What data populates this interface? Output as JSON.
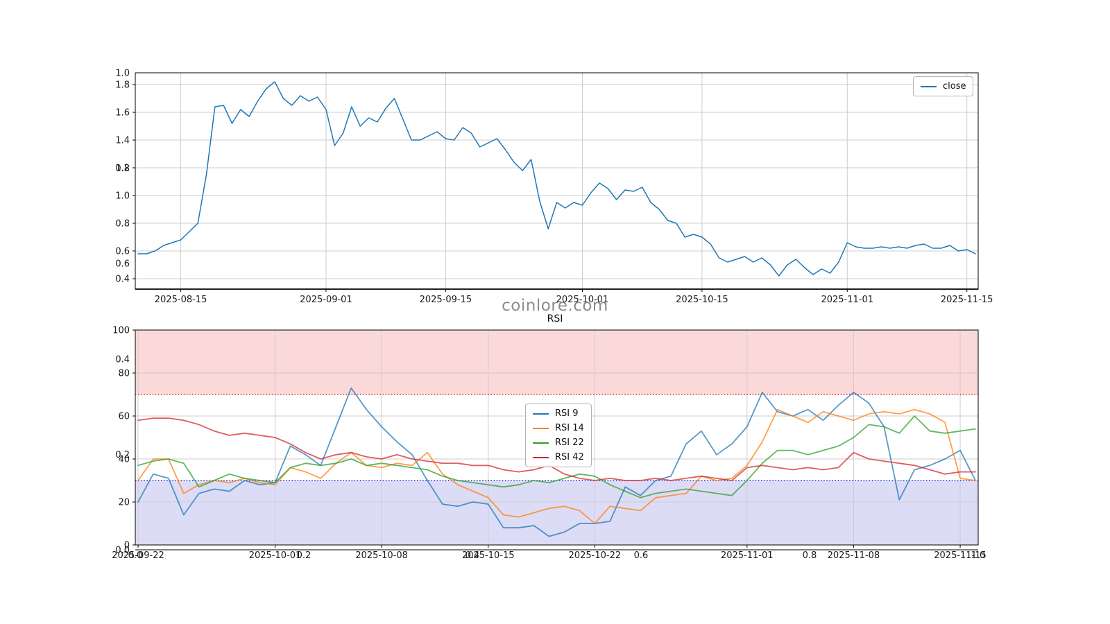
{
  "watermark": "coinlore.com",
  "colors": {
    "close_line": "#1f77b4",
    "rsi9_line": "#1f77b4",
    "rsi14_line": "#ff7f0e",
    "rsi22_line": "#2ca02c",
    "rsi42_line": "#d62728",
    "grid": "#cccccc",
    "overbought_band": "#fbd9d9",
    "oversold_band": "#dddcf6",
    "overbought_line": "#cc0000",
    "oversold_line": "#0000cc"
  },
  "overlay_axis": {
    "x_tick_labels": [
      "0.0",
      "0.2",
      "0.4",
      "0.6",
      "0.8",
      "1.0"
    ],
    "y_tick_labels": [
      "0.0",
      "0.2",
      "0.4",
      "0.6",
      "0.8",
      "1.0"
    ]
  },
  "chart_data": [
    {
      "type": "line",
      "title": "",
      "xlabel": "",
      "ylabel": "",
      "grid": true,
      "legend_loc": "upper right",
      "ylim": [
        0.325,
        1.885
      ],
      "yticks": [
        {
          "value": 0.4,
          "label": "0.4"
        },
        {
          "value": 0.6,
          "label": "0.6"
        },
        {
          "value": 0.8,
          "label": "0.8"
        },
        {
          "value": 1.0,
          "label": "1.0"
        },
        {
          "value": 1.2,
          "label": "1.2"
        },
        {
          "value": 1.4,
          "label": "1.4"
        },
        {
          "value": 1.6,
          "label": "1.6"
        },
        {
          "value": 1.8,
          "label": "1.8"
        }
      ],
      "xticks": [
        "2025-08-15",
        "2025-09-01",
        "2025-09-15",
        "2025-10-01",
        "2025-10-15",
        "2025-11-01",
        "2025-11-15"
      ],
      "x": [
        "2025-08-10",
        "2025-08-11",
        "2025-08-12",
        "2025-08-13",
        "2025-08-14",
        "2025-08-15",
        "2025-08-16",
        "2025-08-17",
        "2025-08-18",
        "2025-08-19",
        "2025-08-20",
        "2025-08-21",
        "2025-08-22",
        "2025-08-23",
        "2025-08-24",
        "2025-08-25",
        "2025-08-26",
        "2025-08-27",
        "2025-08-28",
        "2025-08-29",
        "2025-08-30",
        "2025-08-31",
        "2025-09-01",
        "2025-09-02",
        "2025-09-03",
        "2025-09-04",
        "2025-09-05",
        "2025-09-06",
        "2025-09-07",
        "2025-09-08",
        "2025-09-09",
        "2025-09-10",
        "2025-09-11",
        "2025-09-12",
        "2025-09-13",
        "2025-09-14",
        "2025-09-15",
        "2025-09-16",
        "2025-09-17",
        "2025-09-18",
        "2025-09-19",
        "2025-09-20",
        "2025-09-21",
        "2025-09-22",
        "2025-09-23",
        "2025-09-24",
        "2025-09-25",
        "2025-09-26",
        "2025-09-27",
        "2025-09-28",
        "2025-09-29",
        "2025-09-30",
        "2025-10-01",
        "2025-10-02",
        "2025-10-03",
        "2025-10-04",
        "2025-10-05",
        "2025-10-06",
        "2025-10-07",
        "2025-10-08",
        "2025-10-09",
        "2025-10-10",
        "2025-10-11",
        "2025-10-12",
        "2025-10-13",
        "2025-10-14",
        "2025-10-15",
        "2025-10-16",
        "2025-10-17",
        "2025-10-18",
        "2025-10-19",
        "2025-10-20",
        "2025-10-21",
        "2025-10-22",
        "2025-10-23",
        "2025-10-24",
        "2025-10-25",
        "2025-10-26",
        "2025-10-27",
        "2025-10-28",
        "2025-10-29",
        "2025-10-30",
        "2025-10-31",
        "2025-11-01",
        "2025-11-02",
        "2025-11-03",
        "2025-11-04",
        "2025-11-05",
        "2025-11-06",
        "2025-11-07",
        "2025-11-08",
        "2025-11-09",
        "2025-11-10",
        "2025-11-11",
        "2025-11-12",
        "2025-11-13",
        "2025-11-14",
        "2025-11-15",
        "2025-11-16"
      ],
      "series": [
        {
          "name": "close",
          "color": "#1f77b4",
          "width": 1.5,
          "values": [
            0.58,
            0.58,
            0.6,
            0.64,
            0.66,
            0.68,
            0.74,
            0.8,
            1.15,
            1.64,
            1.65,
            1.52,
            1.62,
            1.57,
            1.68,
            1.77,
            1.82,
            1.7,
            1.65,
            1.72,
            1.68,
            1.71,
            1.62,
            1.36,
            1.45,
            1.64,
            1.5,
            1.56,
            1.53,
            1.63,
            1.7,
            1.55,
            1.4,
            1.4,
            1.43,
            1.46,
            1.41,
            1.4,
            1.49,
            1.45,
            1.35,
            1.38,
            1.41,
            1.33,
            1.24,
            1.18,
            1.26,
            0.96,
            0.76,
            0.95,
            0.91,
            0.95,
            0.93,
            1.02,
            1.09,
            1.05,
            0.97,
            1.04,
            1.03,
            1.06,
            0.95,
            0.9,
            0.82,
            0.8,
            0.7,
            0.72,
            0.7,
            0.65,
            0.55,
            0.52,
            0.54,
            0.56,
            0.52,
            0.55,
            0.5,
            0.42,
            0.5,
            0.54,
            0.48,
            0.43,
            0.47,
            0.44,
            0.52,
            0.66,
            0.63,
            0.62,
            0.62,
            0.63,
            0.62,
            0.63,
            0.62,
            0.64,
            0.65,
            0.62,
            0.62,
            0.64,
            0.6,
            0.61,
            0.58
          ]
        }
      ]
    },
    {
      "type": "line",
      "title": "RSI",
      "xlabel": "",
      "ylabel": "",
      "grid": true,
      "legend_loc": "center",
      "ylim": [
        0,
        100
      ],
      "yticks": [
        {
          "value": 0,
          "label": "0"
        },
        {
          "value": 20,
          "label": "20"
        },
        {
          "value": 40,
          "label": "40"
        },
        {
          "value": 60,
          "label": "60"
        },
        {
          "value": 80,
          "label": "80"
        },
        {
          "value": 100,
          "label": "100"
        }
      ],
      "xticks": [
        "2025-09-22",
        "2025-10-01",
        "2025-10-08",
        "2025-10-15",
        "2025-10-22",
        "2025-11-01",
        "2025-11-08",
        "2025-11-15"
      ],
      "bands": [
        {
          "name": "overbought",
          "from": 70,
          "to": 100,
          "fill": "#fbd9d9",
          "threshold": 70,
          "line_color": "#cc0000"
        },
        {
          "name": "oversold",
          "from": 0,
          "to": 30,
          "fill": "#dddcf6",
          "threshold": 30,
          "line_color": "#0000cc"
        }
      ],
      "x": [
        "2025-09-22",
        "2025-09-23",
        "2025-09-24",
        "2025-09-25",
        "2025-09-26",
        "2025-09-27",
        "2025-09-28",
        "2025-09-29",
        "2025-09-30",
        "2025-10-01",
        "2025-10-02",
        "2025-10-03",
        "2025-10-04",
        "2025-10-05",
        "2025-10-06",
        "2025-10-07",
        "2025-10-08",
        "2025-10-09",
        "2025-10-10",
        "2025-10-11",
        "2025-10-12",
        "2025-10-13",
        "2025-10-14",
        "2025-10-15",
        "2025-10-16",
        "2025-10-17",
        "2025-10-18",
        "2025-10-19",
        "2025-10-20",
        "2025-10-21",
        "2025-10-22",
        "2025-10-23",
        "2025-10-24",
        "2025-10-25",
        "2025-10-26",
        "2025-10-27",
        "2025-10-28",
        "2025-10-29",
        "2025-10-30",
        "2025-10-31",
        "2025-11-01",
        "2025-11-02",
        "2025-11-03",
        "2025-11-04",
        "2025-11-05",
        "2025-11-06",
        "2025-11-07",
        "2025-11-08",
        "2025-11-09",
        "2025-11-10",
        "2025-11-11",
        "2025-11-12",
        "2025-11-13",
        "2025-11-14",
        "2025-11-15",
        "2025-11-16"
      ],
      "series": [
        {
          "name": "RSI 9",
          "color": "#1f77b4",
          "width": 1.8,
          "opacity": 0.75,
          "values": [
            20,
            33,
            31,
            14,
            24,
            26,
            25,
            30,
            28,
            29,
            46,
            42,
            37,
            55,
            73,
            63,
            55,
            48,
            42,
            30,
            19,
            18,
            20,
            19,
            8,
            8,
            9,
            4,
            6,
            10,
            10,
            11,
            27,
            23,
            30,
            32,
            47,
            53,
            42,
            47,
            55,
            71,
            62,
            60,
            63,
            58,
            65,
            71,
            66,
            55,
            21,
            35,
            37,
            40,
            44,
            30
          ]
        },
        {
          "name": "RSI 14",
          "color": "#ff7f0e",
          "width": 1.8,
          "opacity": 0.75,
          "values": [
            30,
            40,
            40,
            24,
            28,
            30,
            29,
            31,
            29,
            28,
            36,
            34,
            31,
            38,
            43,
            37,
            36,
            38,
            37,
            43,
            33,
            28,
            25,
            22,
            14,
            13,
            15,
            17,
            18,
            16,
            10,
            18,
            17,
            16,
            22,
            23,
            24,
            32,
            30,
            31,
            37,
            48,
            63,
            60,
            57,
            62,
            60,
            58,
            61,
            62,
            61,
            63,
            61,
            57,
            31,
            30
          ]
        },
        {
          "name": "RSI 22",
          "color": "#2ca02c",
          "width": 1.8,
          "opacity": 0.75,
          "values": [
            37,
            39,
            40,
            38,
            27,
            30,
            33,
            31,
            30,
            29,
            36,
            38,
            37,
            38,
            40,
            37,
            38,
            37,
            36,
            35,
            32,
            30,
            29,
            28,
            27,
            28,
            30,
            29,
            31,
            33,
            32,
            28,
            25,
            22,
            24,
            25,
            26,
            25,
            24,
            23,
            30,
            38,
            44,
            44,
            42,
            44,
            46,
            50,
            56,
            55,
            52,
            60,
            53,
            52,
            53,
            54
          ]
        },
        {
          "name": "RSI 42",
          "color": "#d62728",
          "width": 1.8,
          "opacity": 0.75,
          "values": [
            58,
            59,
            59,
            58,
            56,
            53,
            51,
            52,
            51,
            50,
            47,
            43,
            40,
            42,
            43,
            41,
            40,
            42,
            40,
            39,
            38,
            38,
            37,
            37,
            35,
            34,
            35,
            37,
            33,
            31,
            30,
            31,
            30,
            30,
            31,
            30,
            31,
            32,
            31,
            30,
            36,
            37,
            36,
            35,
            36,
            35,
            36,
            43,
            40,
            39,
            38,
            37,
            35,
            33,
            34,
            34
          ]
        }
      ]
    }
  ]
}
